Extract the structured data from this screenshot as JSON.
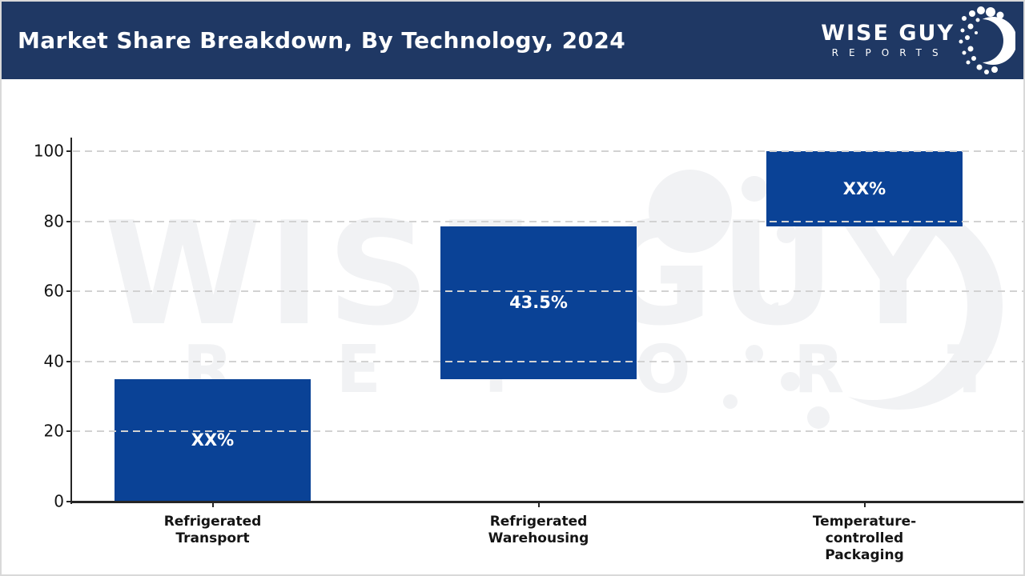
{
  "header": {
    "title": "Market Share Breakdown, By Technology, 2024",
    "bg_color": "#1F3864",
    "logo": {
      "line1": "WISE GUY",
      "line2": "REPORTS"
    }
  },
  "watermark": {
    "line1": "WISE GUY",
    "line2": "R E P O R T S"
  },
  "chart_data": {
    "type": "bar",
    "subtype": "waterfall",
    "title": "Market Share Breakdown, By Technology, 2024",
    "xlabel": "",
    "ylabel": "",
    "ylim": [
      0,
      104
    ],
    "yticks": [
      0,
      20,
      40,
      60,
      80,
      100
    ],
    "ytick_labels": [
      "0",
      "20",
      "40",
      "60",
      "80",
      "100"
    ],
    "grid": "horizontal dashed, drawn over bars",
    "legend": "none",
    "bar_color": "#0A4296",
    "categories": [
      "Refrigerated Transport",
      "Refrigerated Warehousing",
      "Temperature-controlled Packaging"
    ],
    "bars": [
      {
        "category": "Refrigerated Transport",
        "category_lines": [
          "Refrigerated",
          "Transport"
        ],
        "segment_start": 0,
        "segment_end": 35,
        "height": 35,
        "label": "XX%"
      },
      {
        "category": "Refrigerated Warehousing",
        "category_lines": [
          "Refrigerated",
          "Warehousing"
        ],
        "segment_start": 35,
        "segment_end": 78.5,
        "height": 43.5,
        "label": "43.5%"
      },
      {
        "category": "Temperature-controlled Packaging",
        "category_lines": [
          "Temperature-",
          "controlled",
          "Packaging"
        ],
        "segment_start": 78.5,
        "segment_end": 100,
        "height": 21.5,
        "label": "XX%"
      }
    ]
  }
}
